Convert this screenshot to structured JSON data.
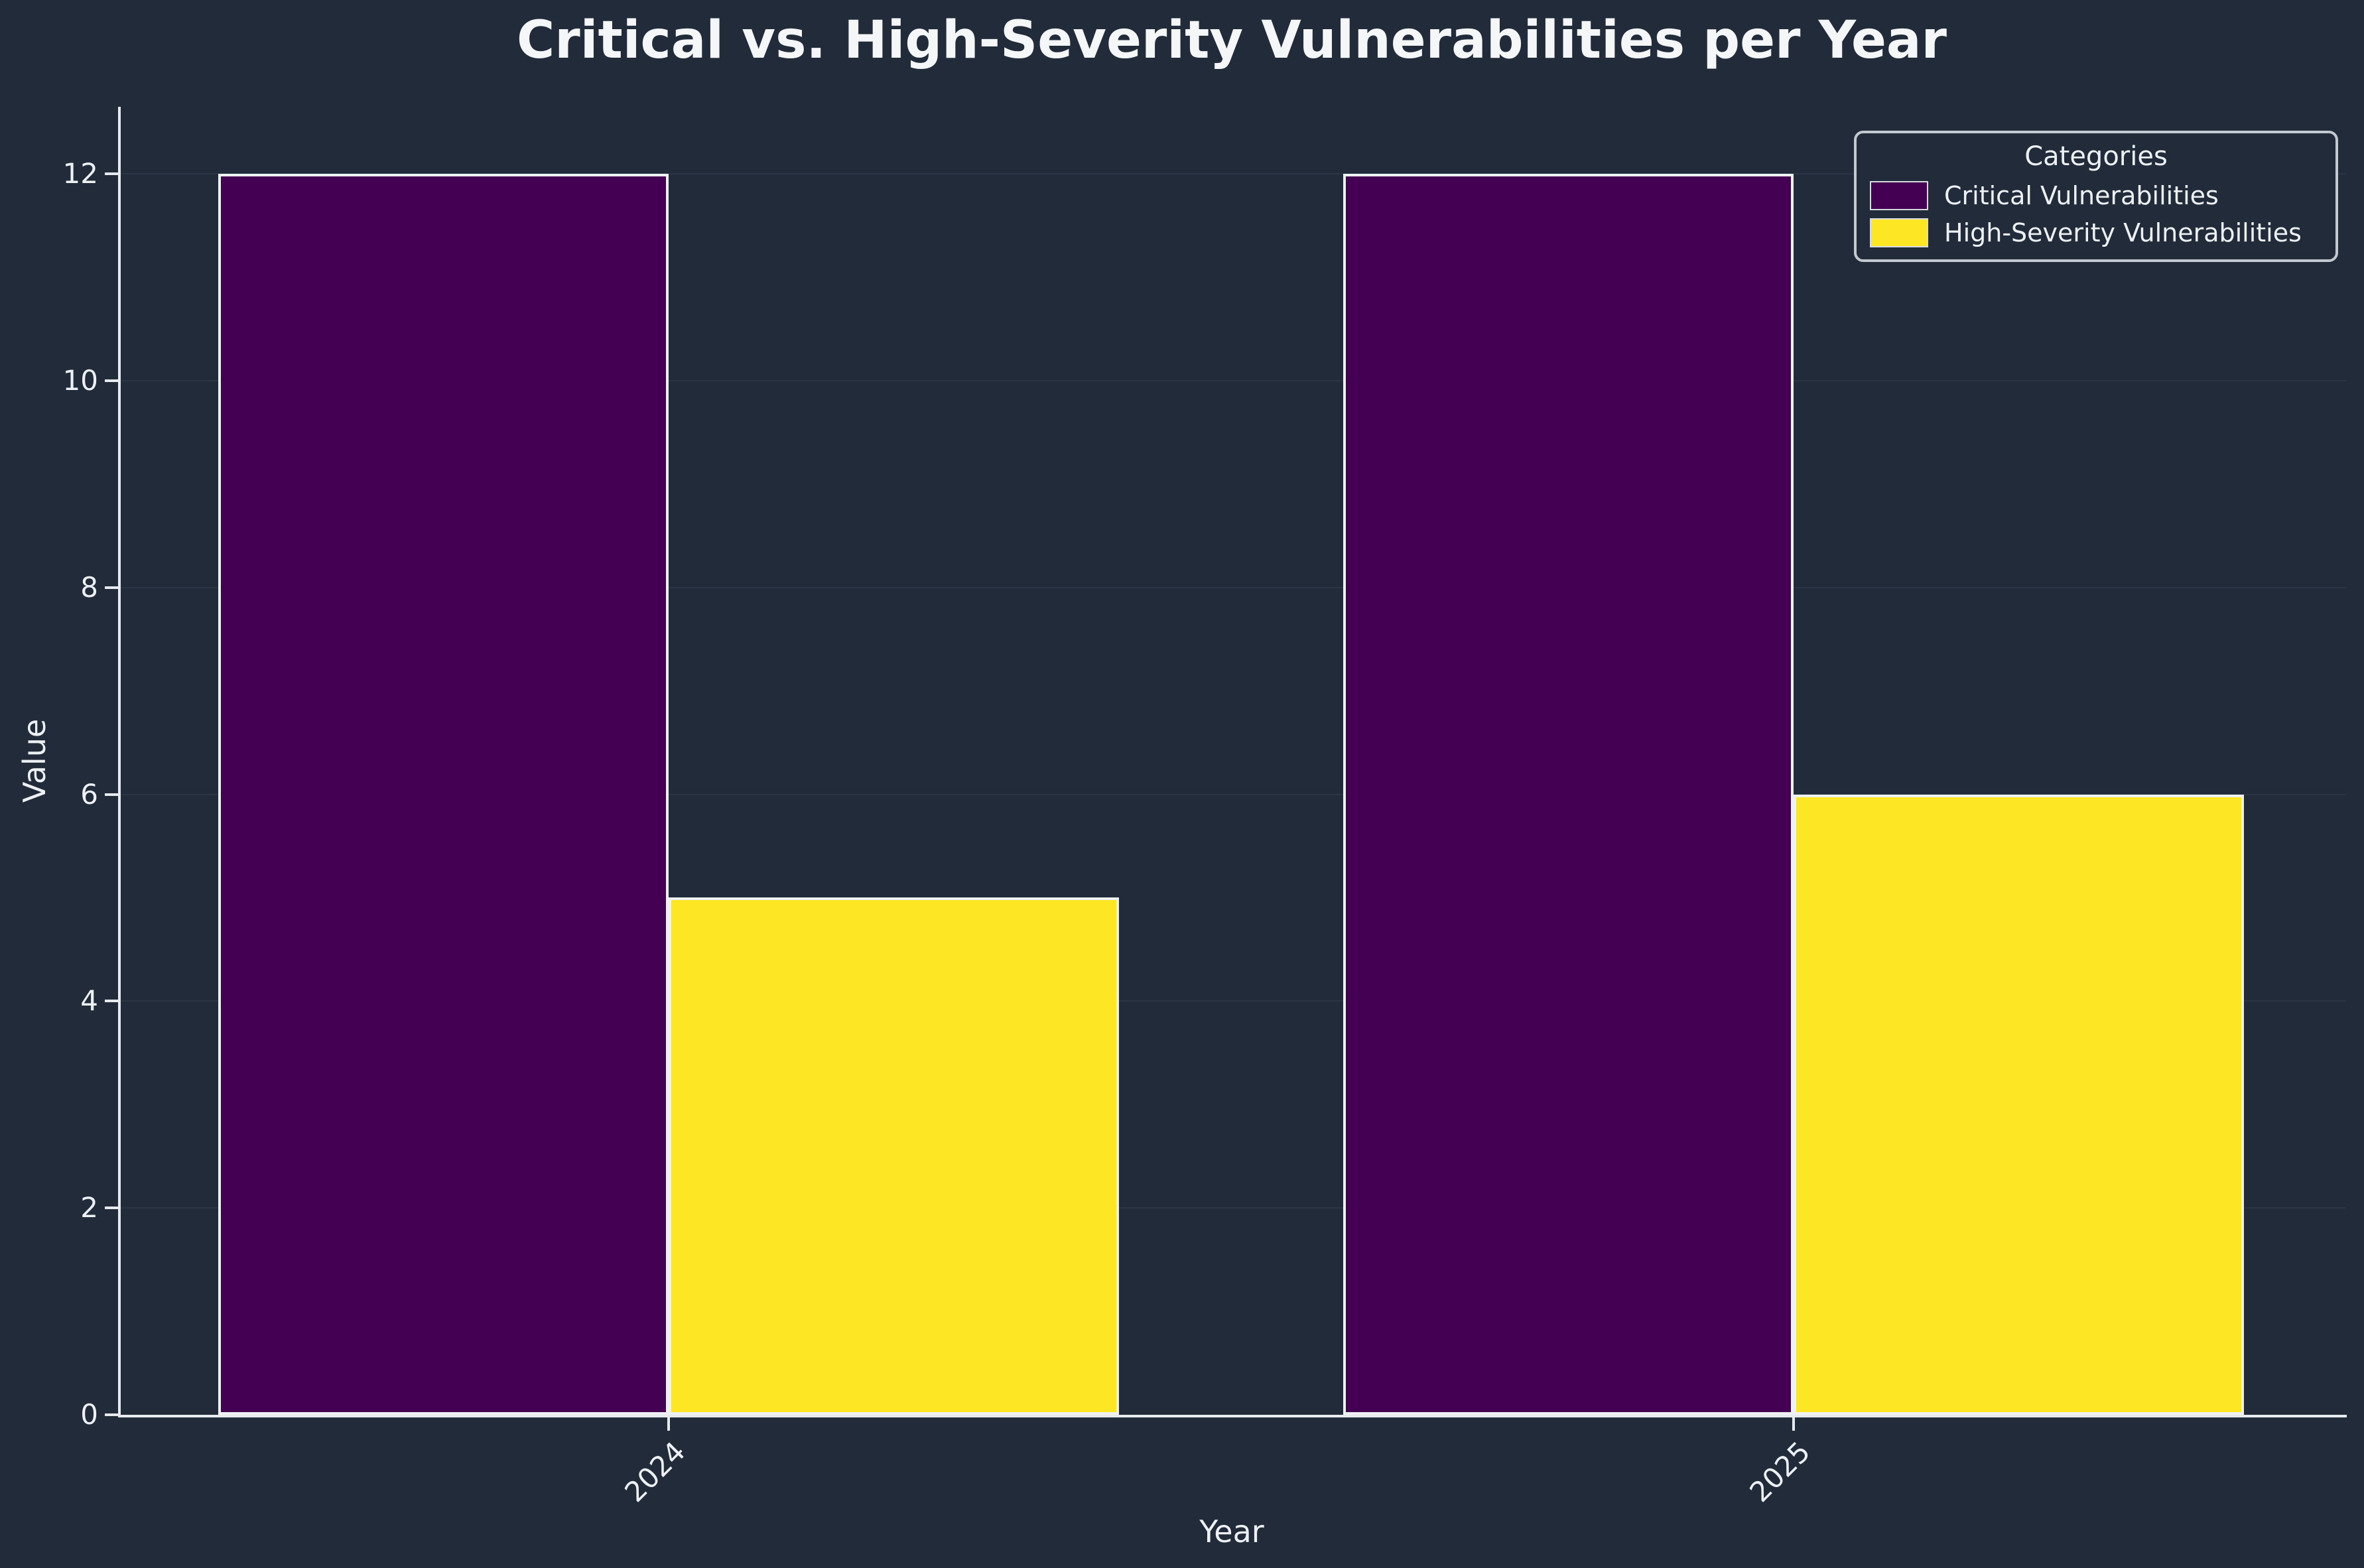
{
  "page": {
    "background_color": "#212b3a"
  },
  "chart_data": {
    "type": "bar",
    "title": "Critical vs. High-Severity Vulnerabilities per Year",
    "xlabel": "Year",
    "ylabel": "Value",
    "categories": [
      "2024",
      "2025"
    ],
    "series": [
      {
        "name": "Critical Vulnerabilities",
        "color": "#440154",
        "values": [
          12,
          12
        ]
      },
      {
        "name": "High-Severity Vulnerabilities",
        "color": "#fde725",
        "values": [
          5,
          6
        ]
      }
    ],
    "yticks": [
      0,
      2,
      4,
      6,
      8,
      10,
      12
    ],
    "ylim": [
      0,
      12.65
    ],
    "grid": true,
    "legend": {
      "title": "Categories",
      "position": "upper right"
    },
    "colors": {
      "background": "#212b3a",
      "axis": "#e8ebee",
      "text": "#eef1f4",
      "gridline": "#2a3444",
      "bar_edge": "#eef0f2",
      "legend_border": "#c4c9cf"
    }
  }
}
